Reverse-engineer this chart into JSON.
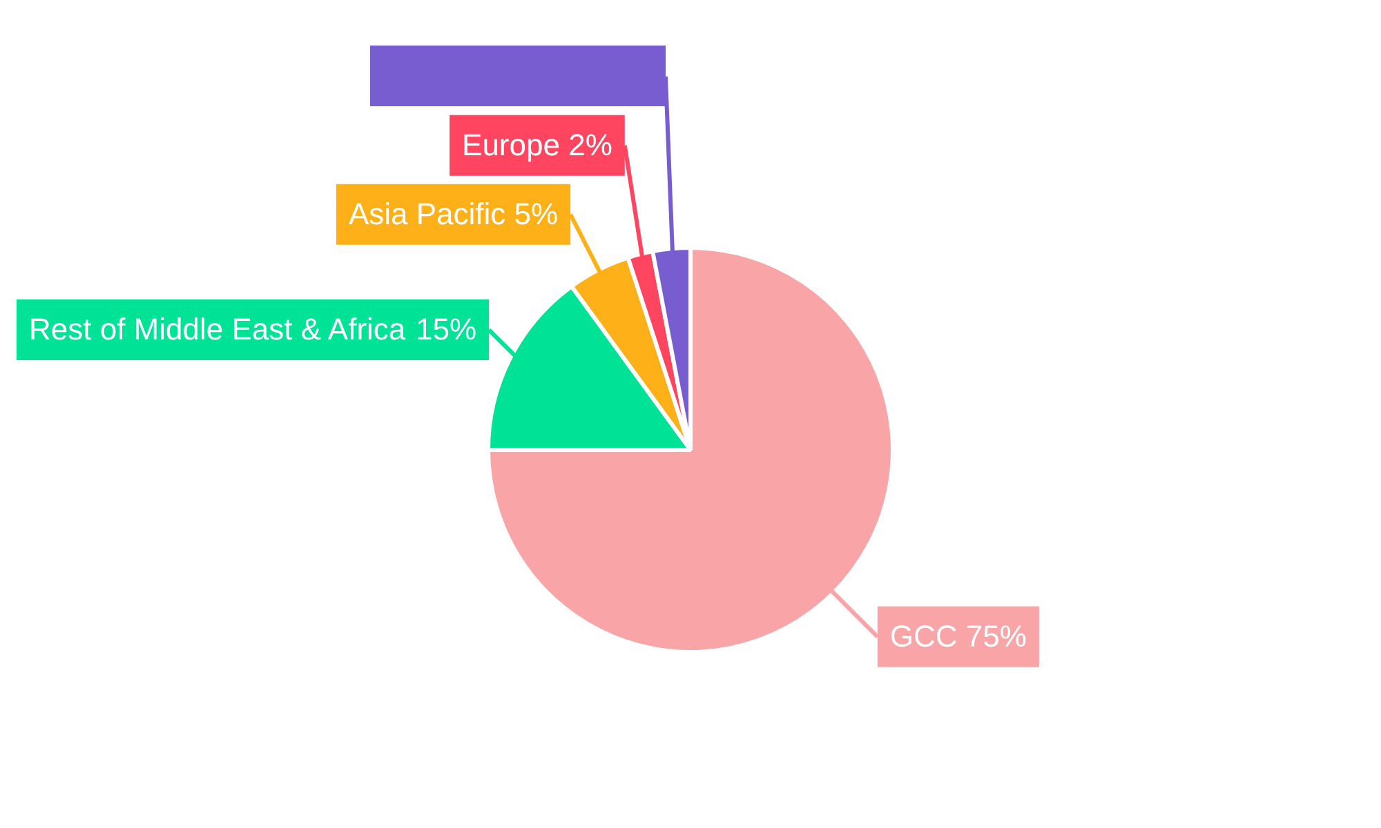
{
  "chart_data": {
    "type": "pie",
    "categories": [
      "GCC",
      "Rest of Middle East & Africa",
      "Asia Pacific",
      "Europe",
      null
    ],
    "values": [
      75,
      15,
      5,
      2,
      3
    ],
    "colors": [
      "#f9a5a7",
      "#00e396",
      "#feb019",
      "#ff4560",
      "#775dd0"
    ],
    "value_labels": [
      "75%",
      "15%",
      "5%",
      "2%",
      null
    ],
    "legend": false
  }
}
